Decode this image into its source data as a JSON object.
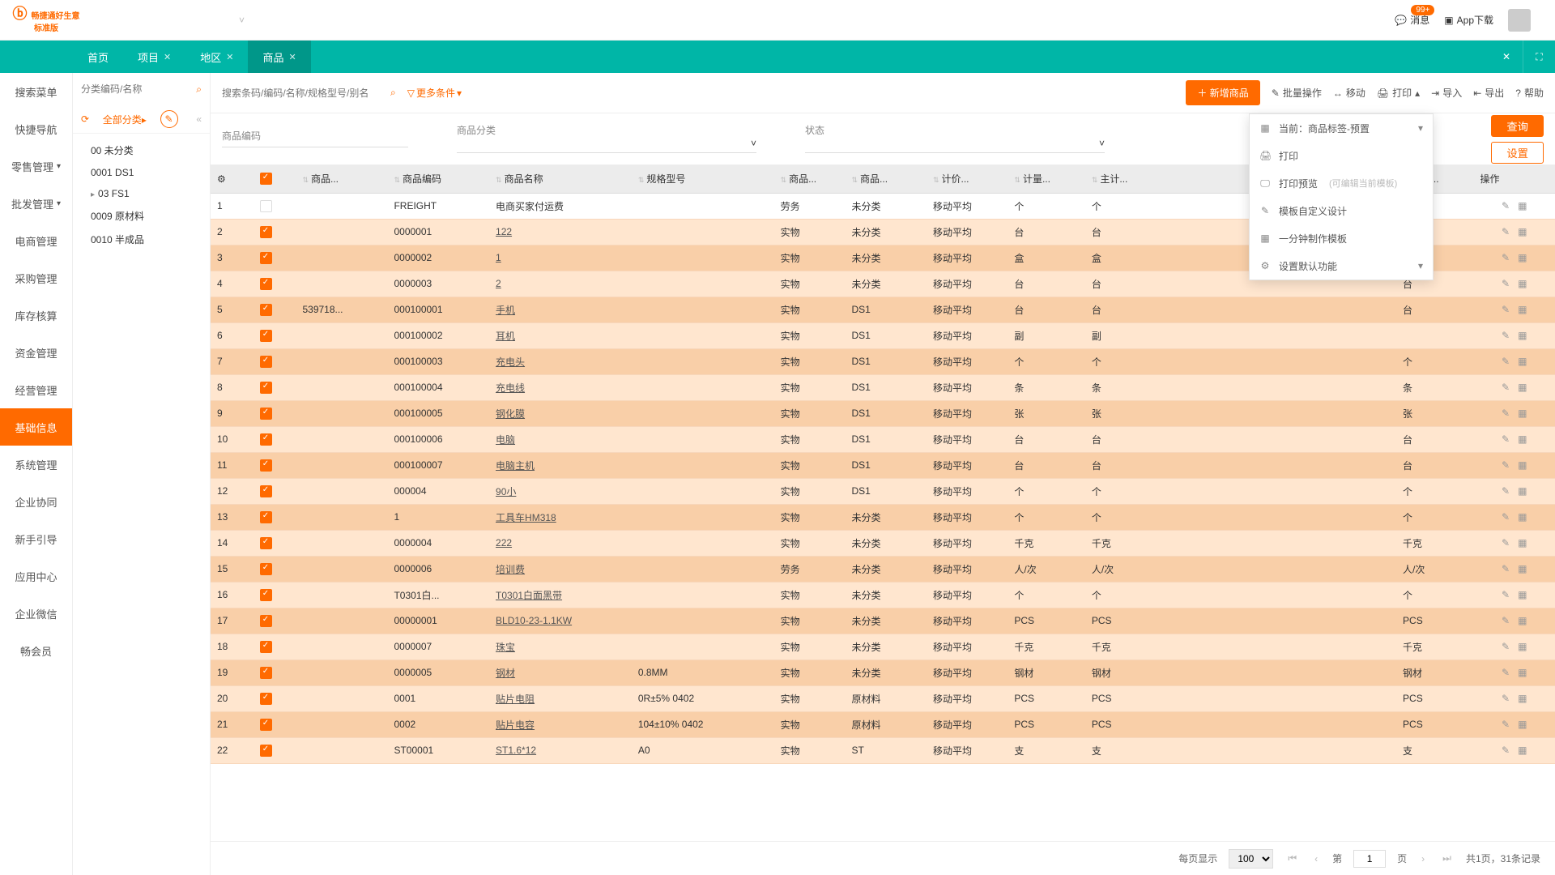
{
  "colors": {
    "accent": "#ff6a00",
    "teal": "#00b6a7",
    "tealDark": "#009789",
    "rowSel": "#f9cfa8",
    "rowAlt": "#ffe6cf"
  },
  "logo": {
    "brand": "畅捷通好生意",
    "edition": "标准版"
  },
  "top": {
    "tenant_placeholder": "",
    "msg": "消息",
    "msg_badge": "99+",
    "appdl": "App下载",
    "user": ""
  },
  "tabs": [
    {
      "label": "首页",
      "closable": false
    },
    {
      "label": "项目",
      "closable": true
    },
    {
      "label": "地区",
      "closable": true
    },
    {
      "label": "商品",
      "closable": true,
      "active": true
    }
  ],
  "leftmenu": [
    {
      "label": "搜索菜单"
    },
    {
      "label": "快捷导航"
    },
    {
      "label": "零售管理",
      "caret": true
    },
    {
      "label": "批发管理",
      "caret": true
    },
    {
      "label": "电商管理"
    },
    {
      "label": "采购管理"
    },
    {
      "label": "库存核算"
    },
    {
      "label": "资金管理"
    },
    {
      "label": "经营管理"
    },
    {
      "label": "基础信息",
      "active": true
    },
    {
      "label": "系统管理"
    },
    {
      "label": "企业协同"
    },
    {
      "label": "新手引导"
    },
    {
      "label": "应用中心"
    },
    {
      "label": "企业微信"
    },
    {
      "label": "畅会员"
    }
  ],
  "catcol": {
    "search_placeholder": "分类编码/名称",
    "all_label": "全部分类",
    "nodes": [
      {
        "label": "00 未分类"
      },
      {
        "label": "0001 DS1"
      },
      {
        "label": "03 FS1",
        "caret": true
      },
      {
        "label": "0009 原材料"
      },
      {
        "label": "0010 半成品"
      }
    ]
  },
  "toolbar": {
    "search_placeholder": "搜索条码/编码/名称/规格型号/别名",
    "more_filter": "更多条件",
    "add": "新增商品",
    "batch": "批量操作",
    "move": "移动",
    "print": "打印",
    "import": "导入",
    "export": "导出",
    "help": "帮助"
  },
  "filter": {
    "f_code": "商品编码",
    "f_cat": "商品分类",
    "f_status": "状态",
    "btn_query": "查询",
    "btn_set": "设置"
  },
  "printPanel": {
    "current_prefix": "当前：",
    "current_tpl": "商品标签-预置",
    "items": [
      {
        "ic": "🖨",
        "label": "打印"
      },
      {
        "ic": "🖵",
        "label": "打印预览",
        "hint": "(可编辑当前模板)"
      },
      {
        "ic": "✎",
        "label": "模板自定义设计"
      },
      {
        "ic": "▦",
        "label": "一分钟制作模板"
      },
      {
        "ic": "⚙",
        "label": "设置默认功能",
        "caret": true
      }
    ]
  },
  "columns": {
    "barcode": "商品...",
    "code": "商品编码",
    "name": "商品名称",
    "spec": "规格型号",
    "type": "商品...",
    "cat": "商品...",
    "price": "计价...",
    "unit": "计量...",
    "mainu": "主计...",
    "saleu": "销售...",
    "ops": "操作"
  },
  "rows": [
    {
      "idx": 1,
      "chk": false,
      "barcode": "",
      "code": "FREIGHT",
      "name": "电商买家付运费",
      "link": false,
      "spec": "",
      "type": "劳务",
      "cat": "未分类",
      "price": "移动平均",
      "unit": "个",
      "mainu": "个",
      "saleu": ""
    },
    {
      "idx": 2,
      "chk": true,
      "barcode": "",
      "code": "0000001",
      "name": "122",
      "link": true,
      "spec": "",
      "type": "实物",
      "cat": "未分类",
      "price": "移动平均",
      "unit": "台",
      "mainu": "台",
      "saleu": "台"
    },
    {
      "idx": 3,
      "chk": true,
      "barcode": "",
      "code": "0000002",
      "name": "1",
      "link": true,
      "spec": "",
      "type": "实物",
      "cat": "未分类",
      "price": "移动平均",
      "unit": "盒",
      "mainu": "盒",
      "saleu": "盒"
    },
    {
      "idx": 4,
      "chk": true,
      "barcode": "",
      "code": "0000003",
      "name": "2",
      "link": true,
      "spec": "",
      "type": "实物",
      "cat": "未分类",
      "price": "移动平均",
      "unit": "台",
      "mainu": "台",
      "saleu": "台"
    },
    {
      "idx": 5,
      "chk": true,
      "barcode": "539718...",
      "code": "000100001",
      "name": "手机",
      "link": true,
      "spec": "",
      "type": "实物",
      "cat": "DS1",
      "price": "移动平均",
      "unit": "台",
      "mainu": "台",
      "saleu": "台"
    },
    {
      "idx": 6,
      "chk": true,
      "barcode": "",
      "code": "000100002",
      "name": "耳机",
      "link": true,
      "spec": "",
      "type": "实物",
      "cat": "DS1",
      "price": "移动平均",
      "unit": "副",
      "mainu": "副",
      "saleu": ""
    },
    {
      "idx": 7,
      "chk": true,
      "barcode": "",
      "code": "000100003",
      "name": "充电头",
      "link": true,
      "spec": "",
      "type": "实物",
      "cat": "DS1",
      "price": "移动平均",
      "unit": "个",
      "mainu": "个",
      "saleu": "个"
    },
    {
      "idx": 8,
      "chk": true,
      "barcode": "",
      "code": "000100004",
      "name": "充电线",
      "link": true,
      "spec": "",
      "type": "实物",
      "cat": "DS1",
      "price": "移动平均",
      "unit": "条",
      "mainu": "条",
      "saleu": "条"
    },
    {
      "idx": 9,
      "chk": true,
      "barcode": "",
      "code": "000100005",
      "name": "钢化膜",
      "link": true,
      "spec": "",
      "type": "实物",
      "cat": "DS1",
      "price": "移动平均",
      "unit": "张",
      "mainu": "张",
      "saleu": "张"
    },
    {
      "idx": 10,
      "chk": true,
      "barcode": "",
      "code": "000100006",
      "name": "电脑",
      "link": true,
      "spec": "",
      "type": "实物",
      "cat": "DS1",
      "price": "移动平均",
      "unit": "台",
      "mainu": "台",
      "saleu": "台"
    },
    {
      "idx": 11,
      "chk": true,
      "barcode": "",
      "code": "000100007",
      "name": "电脑主机",
      "link": true,
      "spec": "",
      "type": "实物",
      "cat": "DS1",
      "price": "移动平均",
      "unit": "台",
      "mainu": "台",
      "saleu": "台"
    },
    {
      "idx": 12,
      "chk": true,
      "barcode": "",
      "code": "000004",
      "name": "90小",
      "link": true,
      "spec": "",
      "type": "实物",
      "cat": "DS1",
      "price": "移动平均",
      "unit": "个",
      "mainu": "个",
      "saleu": "个"
    },
    {
      "idx": 13,
      "chk": true,
      "barcode": "",
      "code": "1",
      "name": "工具车HM318",
      "link": true,
      "spec": "",
      "type": "实物",
      "cat": "未分类",
      "price": "移动平均",
      "unit": "个",
      "mainu": "个",
      "saleu": "个"
    },
    {
      "idx": 14,
      "chk": true,
      "barcode": "",
      "code": "0000004",
      "name": "222",
      "link": true,
      "spec": "",
      "type": "实物",
      "cat": "未分类",
      "price": "移动平均",
      "unit": "千克",
      "mainu": "千克",
      "saleu": "千克"
    },
    {
      "idx": 15,
      "chk": true,
      "barcode": "",
      "code": "0000006",
      "name": "培训费",
      "link": true,
      "spec": "",
      "type": "劳务",
      "cat": "未分类",
      "price": "移动平均",
      "unit": "人/次",
      "mainu": "人/次",
      "saleu": "人/次"
    },
    {
      "idx": 16,
      "chk": true,
      "barcode": "",
      "code": "T0301白...",
      "name": "T0301白面黑带",
      "link": true,
      "spec": "",
      "type": "实物",
      "cat": "未分类",
      "price": "移动平均",
      "unit": "个",
      "mainu": "个",
      "saleu": "个"
    },
    {
      "idx": 17,
      "chk": true,
      "barcode": "",
      "code": "00000001",
      "name": "BLD10-23-1.1KW",
      "link": true,
      "spec": "",
      "type": "实物",
      "cat": "未分类",
      "price": "移动平均",
      "unit": "PCS",
      "mainu": "PCS",
      "saleu": "PCS"
    },
    {
      "idx": 18,
      "chk": true,
      "barcode": "",
      "code": "0000007",
      "name": "珠宝",
      "link": true,
      "spec": "",
      "type": "实物",
      "cat": "未分类",
      "price": "移动平均",
      "unit": "千克",
      "mainu": "千克",
      "saleu": "千克"
    },
    {
      "idx": 19,
      "chk": true,
      "barcode": "",
      "code": "0000005",
      "name": "钢材",
      "link": true,
      "spec": "0.8MM",
      "type": "实物",
      "cat": "未分类",
      "price": "移动平均",
      "unit": "钢材",
      "mainu": "钢材",
      "saleu": "钢材"
    },
    {
      "idx": 20,
      "chk": true,
      "barcode": "",
      "code": "0001",
      "name": "贴片电阻",
      "link": true,
      "spec": "0R±5% 0402",
      "type": "实物",
      "cat": "原材料",
      "price": "移动平均",
      "unit": "PCS",
      "mainu": "PCS",
      "saleu": "PCS"
    },
    {
      "idx": 21,
      "chk": true,
      "barcode": "",
      "code": "0002",
      "name": "贴片电容",
      "link": true,
      "spec": "104±10% 0402",
      "type": "实物",
      "cat": "原材料",
      "price": "移动平均",
      "unit": "PCS",
      "mainu": "PCS",
      "saleu": "PCS"
    },
    {
      "idx": 22,
      "chk": true,
      "barcode": "",
      "code": "ST00001",
      "name": "ST1.6*12",
      "link": true,
      "spec": "A0",
      "type": "实物",
      "cat": "ST",
      "price": "移动平均",
      "unit": "支",
      "mainu": "支",
      "saleu": "支"
    }
  ],
  "pager": {
    "perpage_lbl": "每页显示",
    "perpage": "100",
    "page_lbl_pre": "第",
    "page": "1",
    "page_lbl_suf": "页",
    "summary": "共1页，31条记录"
  }
}
